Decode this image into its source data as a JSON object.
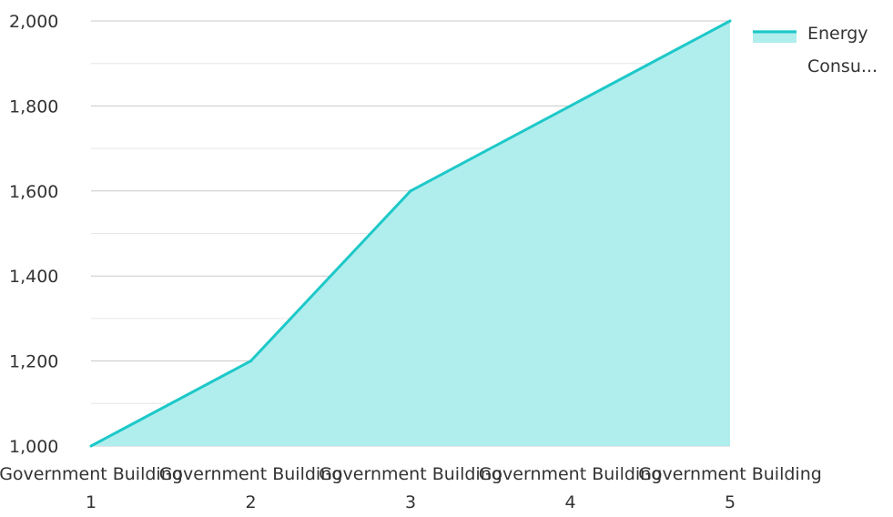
{
  "chart_data": {
    "type": "area",
    "categories": [
      "Government Building 1",
      "Government Building 2",
      "Government Building 3",
      "Government Building 4",
      "Government Building 5"
    ],
    "series": [
      {
        "name": "Energy Consu...",
        "values": [
          1000,
          1200,
          1600,
          1800,
          2000
        ]
      }
    ],
    "y_tick_labels": [
      "1,000",
      "1,200",
      "1,400",
      "1,600",
      "1,800",
      "2,000"
    ],
    "ylim": [
      1000,
      2000
    ],
    "grid": true,
    "legend_position": "top-right",
    "colors": {
      "line": "#1ec8c8",
      "fill": "#b0eeee",
      "grid_major": "#c8c8c8",
      "grid_minor": "#e6e6e6"
    }
  }
}
